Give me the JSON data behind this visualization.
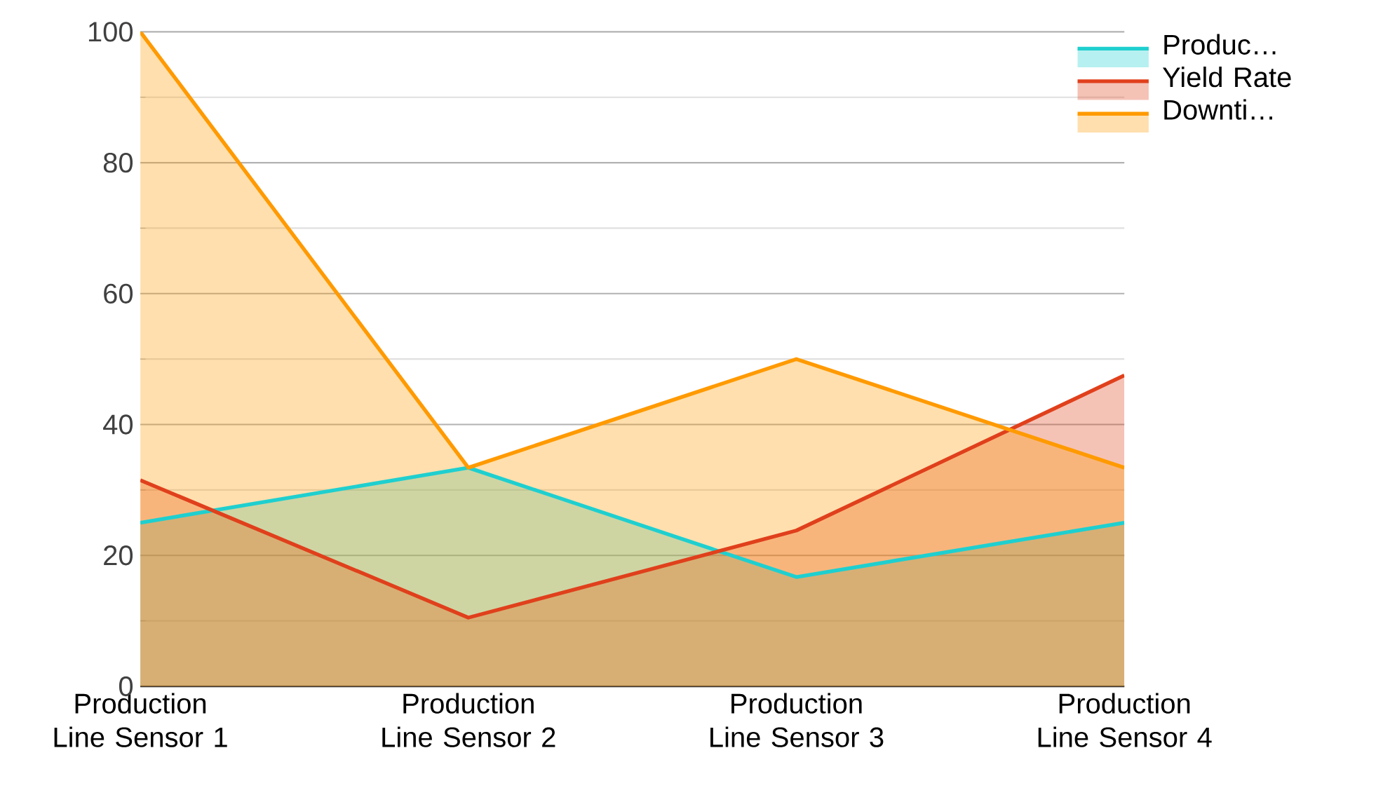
{
  "chart_data": {
    "type": "area",
    "categories": [
      "Production Line Sensor 1",
      "Production Line Sensor 2",
      "Production Line Sensor 3",
      "Production Line Sensor 4"
    ],
    "series": [
      {
        "name": "Produc…",
        "color": "#1fcfcf",
        "values": [
          25,
          33.4,
          16.7,
          25
        ]
      },
      {
        "name": "Yield Rate",
        "color": "#e0401c",
        "values": [
          31.5,
          10.5,
          23.8,
          47.5
        ]
      },
      {
        "name": "Downti…",
        "color": "#ff9a00",
        "values": [
          100,
          33.4,
          50,
          33.4
        ]
      }
    ],
    "ylim": [
      0,
      100
    ],
    "yticks": [
      0,
      20,
      40,
      60,
      80,
      100
    ],
    "grid": "y",
    "legend": "top right"
  }
}
